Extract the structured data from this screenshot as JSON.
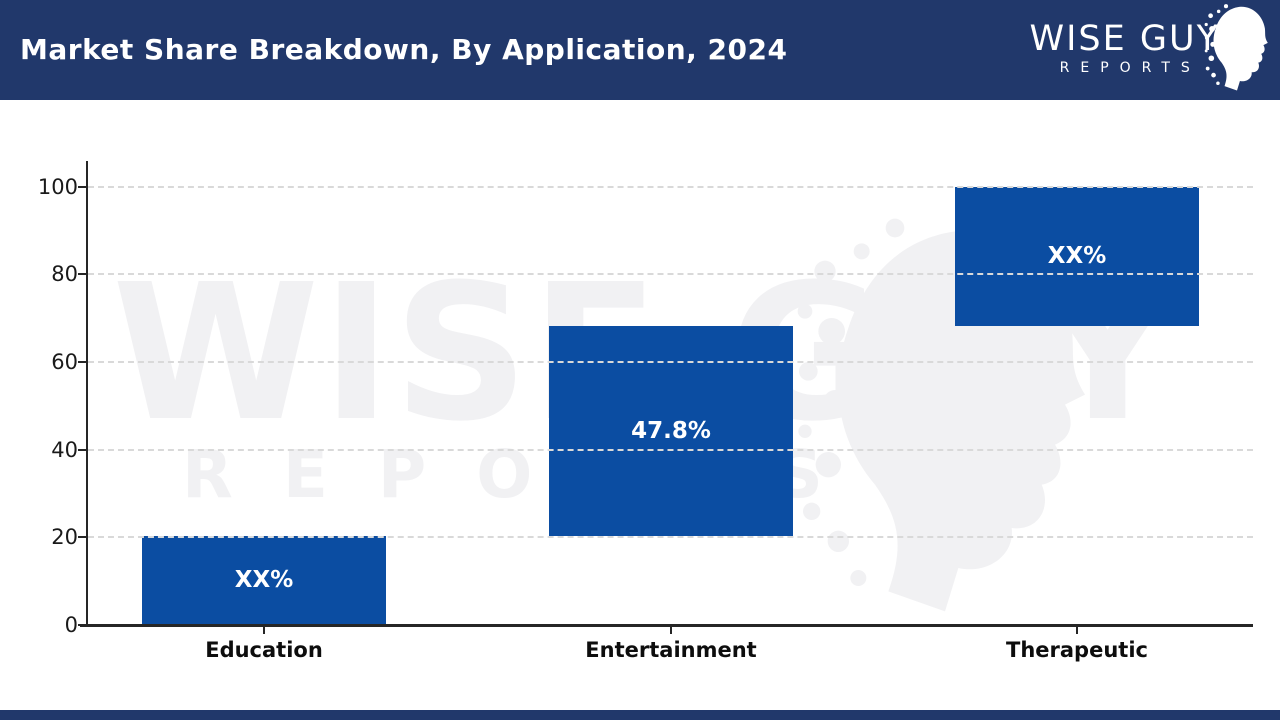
{
  "header": {
    "title": "Market Share Breakdown, By Application, 2024",
    "logo": {
      "line1": "WISE GUY",
      "line2": "REPORTS"
    }
  },
  "watermark": {
    "line1": "WISE GUY",
    "line2": "REPORTS"
  },
  "chart_data": {
    "type": "bar",
    "subtype": "floating-segment waterfall of market shares",
    "title": "Market Share Breakdown, By Application, 2024",
    "categories": [
      "Education",
      "Entertainment",
      "Therapeutic"
    ],
    "bars": [
      {
        "category": "Education",
        "start": 0,
        "end": 20.4,
        "label": "XX%"
      },
      {
        "category": "Entertainment",
        "start": 20.4,
        "end": 68.2,
        "label": "47.8%"
      },
      {
        "category": "Therapeutic",
        "start": 68.2,
        "end": 100,
        "label": "XX%"
      }
    ],
    "xlabel": "",
    "ylabel": "",
    "ylim": [
      0,
      100
    ],
    "yticks": [
      0,
      20,
      40,
      60,
      80,
      100
    ],
    "grid": "horizontal dashed, drawn over bars",
    "legend": "none",
    "colors": {
      "bar": "#0b4da2",
      "grid": "#d9d9d9",
      "axis": "#262626",
      "header_bg": "#21386b",
      "bar_label_text": "#ffffff",
      "watermark": "#f1f1f3"
    }
  }
}
